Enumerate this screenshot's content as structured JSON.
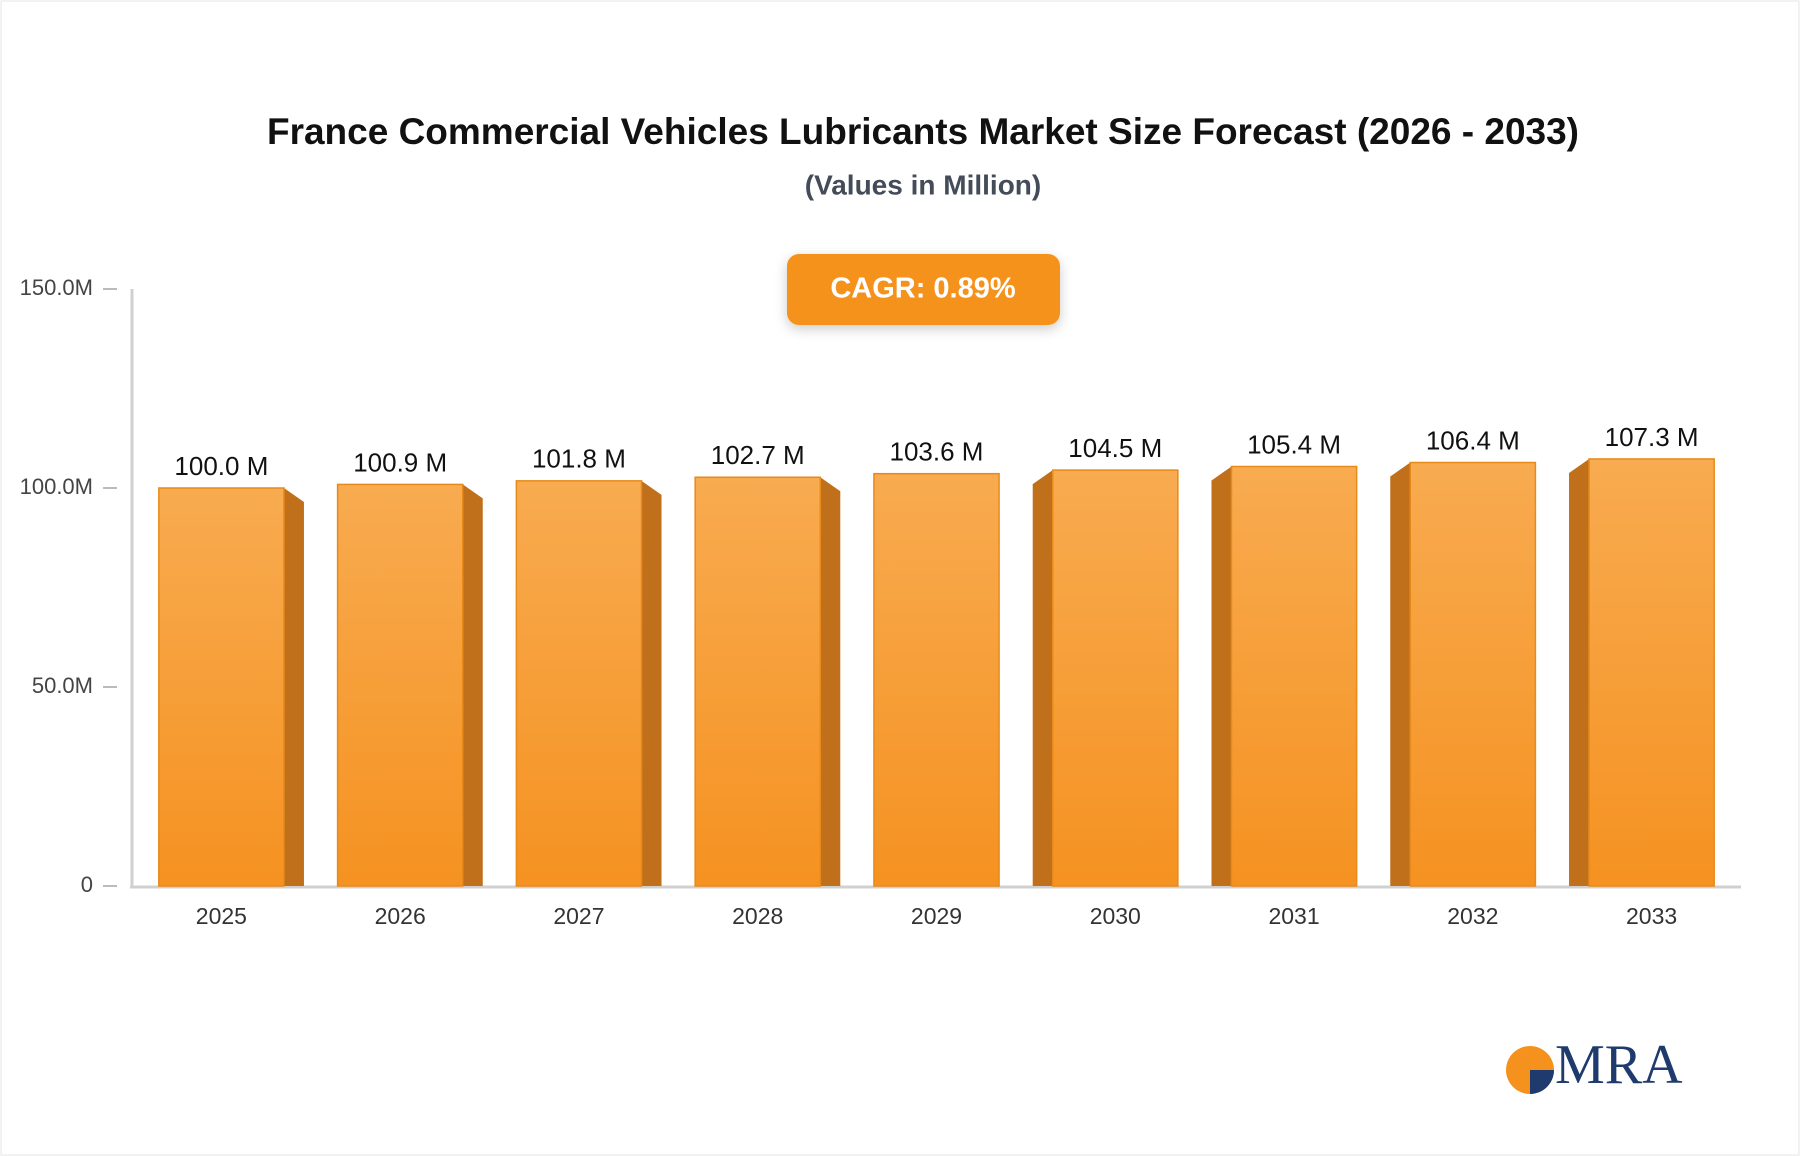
{
  "chart_data": {
    "type": "bar",
    "title": "France Commercial Vehicles Lubricants Market Size Forecast (2026 - 2033)",
    "subtitle": "(Values in Million)",
    "annotation": "CAGR: 0.89%",
    "logo": "MRA",
    "categories": [
      "2025",
      "2026",
      "2027",
      "2028",
      "2029",
      "2030",
      "2031",
      "2032",
      "2033"
    ],
    "values": [
      100.0,
      100.9,
      101.8,
      102.7,
      103.6,
      104.5,
      105.4,
      106.4,
      107.3
    ],
    "value_labels": [
      "100.0 M",
      "100.9 M",
      "101.8 M",
      "102.7 M",
      "103.6 M",
      "104.5 M",
      "105.4 M",
      "106.4 M",
      "107.3 M"
    ],
    "color": "#f7a03c",
    "ylim": [
      0,
      150
    ],
    "yticks": [
      0,
      {
        "value": 50,
        "label": "50.0M"
      },
      {
        "value": 100,
        "label": "100.0M"
      },
      {
        "value": 150,
        "label": "150.0M"
      }
    ]
  }
}
